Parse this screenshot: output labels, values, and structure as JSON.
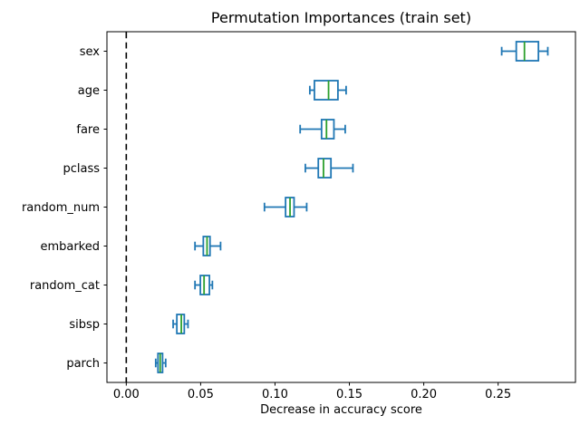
{
  "chart_data": {
    "type": "boxplot",
    "orientation": "horizontal",
    "title": "Permutation Importances (train set)",
    "xlabel": "Decrease in accuracy score",
    "xlim": [
      -0.013,
      0.302
    ],
    "xticks": [
      0.0,
      0.05,
      0.1,
      0.15,
      0.2,
      0.25
    ],
    "xtick_labels": [
      "0.00",
      "0.05",
      "0.10",
      "0.15",
      "0.20",
      "0.25"
    ],
    "grid": false,
    "legend": "none",
    "colors": {
      "box": "#1f77b4",
      "whisker": "#1f77b4",
      "cap": "#1f77b4",
      "median": "#2ca02c",
      "refline": "#000000",
      "axis": "#000000",
      "background": "#ffffff"
    },
    "refline": {
      "x": 0.0,
      "style": "dashed"
    },
    "categories_top_to_bottom": [
      "sex",
      "age",
      "fare",
      "pclass",
      "random_num",
      "embarked",
      "random_cat",
      "sibsp",
      "parch"
    ],
    "boxes": [
      {
        "label": "sex",
        "whislo": 0.2524,
        "q1": 0.2622,
        "med": 0.2677,
        "q3": 0.2771,
        "whishi": 0.2834
      },
      {
        "label": "age",
        "whislo": 0.1234,
        "q1": 0.1265,
        "med": 0.136,
        "q3": 0.1423,
        "whishi": 0.1478
      },
      {
        "label": "fare",
        "whislo": 0.1169,
        "q1": 0.1313,
        "med": 0.1346,
        "q3": 0.1396,
        "whishi": 0.1472
      },
      {
        "label": "pclass",
        "whislo": 0.1204,
        "q1": 0.1291,
        "med": 0.1326,
        "q3": 0.1376,
        "whishi": 0.1524
      },
      {
        "label": "random_num",
        "whislo": 0.0929,
        "q1": 0.1071,
        "med": 0.1101,
        "q3": 0.1128,
        "whishi": 0.1213
      },
      {
        "label": "embarked",
        "whislo": 0.0462,
        "q1": 0.0518,
        "med": 0.0543,
        "q3": 0.0563,
        "whishi": 0.0634
      },
      {
        "label": "random_cat",
        "whislo": 0.0462,
        "q1": 0.0498,
        "med": 0.0523,
        "q3": 0.0559,
        "whishi": 0.0579
      },
      {
        "label": "sibsp",
        "whislo": 0.0315,
        "q1": 0.034,
        "med": 0.037,
        "q3": 0.039,
        "whishi": 0.0415
      },
      {
        "label": "parch",
        "whislo": 0.0198,
        "q1": 0.0213,
        "med": 0.0228,
        "q3": 0.0244,
        "whishi": 0.0265
      }
    ]
  }
}
